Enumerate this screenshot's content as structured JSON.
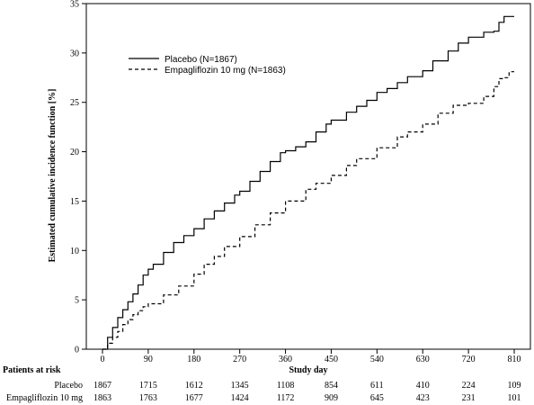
{
  "chart_data": {
    "type": "line",
    "title": "",
    "xlabel": "Study day",
    "ylabel": "Estimated cumulative incidence function [%]",
    "xlim": [
      0,
      810
    ],
    "ylim": [
      0,
      35
    ],
    "xticks": [
      0,
      90,
      180,
      270,
      360,
      450,
      540,
      630,
      720,
      810
    ],
    "yticks": [
      0,
      5,
      10,
      15,
      20,
      25,
      30,
      35
    ],
    "grid": false,
    "legend_position": "top-left",
    "series": [
      {
        "name": "Placebo (N=1867)",
        "line_style": "solid",
        "color": "#000000",
        "x": [
          0,
          10,
          20,
          30,
          40,
          50,
          60,
          70,
          80,
          90,
          100,
          120,
          140,
          160,
          180,
          200,
          220,
          240,
          260,
          270,
          290,
          310,
          330,
          350,
          360,
          380,
          400,
          420,
          440,
          450,
          480,
          500,
          520,
          540,
          560,
          580,
          600,
          630,
          650,
          680,
          700,
          720,
          750,
          770,
          780,
          790,
          800,
          810
        ],
        "y": [
          0,
          1.2,
          2.2,
          3.2,
          4.0,
          4.8,
          5.6,
          6.5,
          7.5,
          8.1,
          8.6,
          9.8,
          10.8,
          11.5,
          12.2,
          13.2,
          14.0,
          14.8,
          15.6,
          16.0,
          17.0,
          18.0,
          19.0,
          19.9,
          20.1,
          20.5,
          21.0,
          22.0,
          22.8,
          23.2,
          24.0,
          24.6,
          25.2,
          26.0,
          26.4,
          27.0,
          27.6,
          28.2,
          29.2,
          30.2,
          31.0,
          31.6,
          32.1,
          32.2,
          33.1,
          33.7,
          33.7,
          33.7
        ]
      },
      {
        "name": "Empagliflozin 10 mg (N=1863)",
        "line_style": "dashed",
        "color": "#000000",
        "x": [
          0,
          10,
          20,
          30,
          40,
          50,
          60,
          70,
          80,
          90,
          120,
          150,
          180,
          200,
          220,
          240,
          270,
          300,
          330,
          360,
          400,
          420,
          450,
          480,
          500,
          540,
          580,
          600,
          630,
          660,
          690,
          720,
          750,
          770,
          780,
          790,
          800,
          810
        ],
        "y": [
          0,
          0.6,
          1.2,
          1.8,
          2.5,
          3.0,
          3.5,
          3.9,
          4.3,
          4.6,
          5.5,
          6.4,
          7.6,
          8.6,
          9.4,
          10.4,
          11.4,
          12.6,
          13.8,
          15.0,
          16.2,
          16.8,
          17.6,
          18.6,
          19.3,
          20.4,
          21.5,
          22.0,
          22.8,
          23.9,
          24.7,
          24.9,
          25.6,
          26.6,
          27.4,
          27.5,
          28.1,
          28.1
        ]
      }
    ],
    "risk_table": {
      "title": "Patients at risk",
      "timepoints": [
        0,
        90,
        180,
        270,
        360,
        450,
        540,
        630,
        720,
        810
      ],
      "rows": [
        {
          "label": "Placebo",
          "values": [
            1867,
            1715,
            1612,
            1345,
            1108,
            854,
            611,
            410,
            224,
            109
          ]
        },
        {
          "label": "Empagliflozin 10 mg",
          "values": [
            1863,
            1763,
            1677,
            1424,
            1172,
            909,
            645,
            423,
            231,
            101
          ]
        }
      ]
    }
  }
}
